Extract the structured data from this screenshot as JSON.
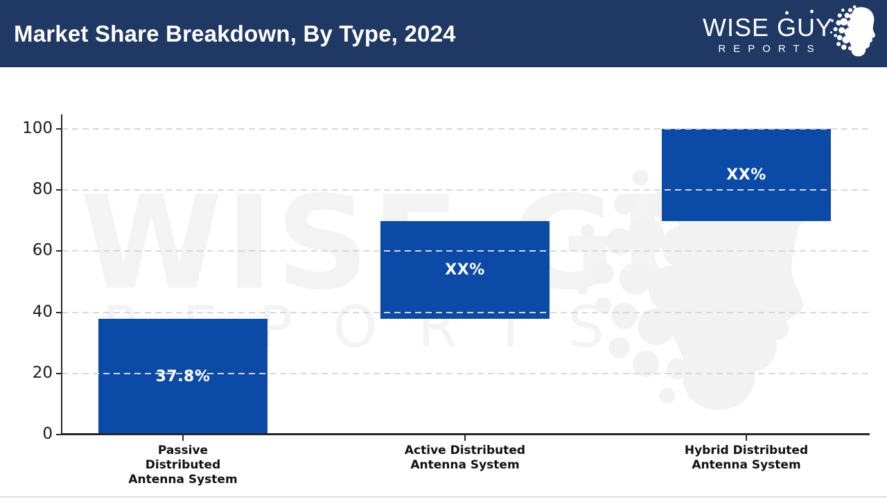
{
  "header": {
    "title": "Market Share Breakdown, By Type, 2024",
    "logo": {
      "wordmark": "WISE GUY",
      "subtitle": "REPORTS"
    }
  },
  "watermark": {
    "wordmark": "WISE GUY",
    "subtitle": "REPORTS"
  },
  "chart_data": {
    "type": "bar",
    "subtype": "floating-segment-waterfall",
    "title": "Market Share Breakdown, By Type, 2024",
    "categories": [
      "Passive Distributed Antenna System",
      "Active Distributed Antenna System",
      "Hybrid Distributed Antenna System"
    ],
    "bars": [
      {
        "category_lines": [
          "Passive",
          "Distributed",
          "Antenna System"
        ],
        "label": "37.8%",
        "start": 0,
        "end": 37.8
      },
      {
        "category_lines": [
          "Active Distributed",
          "Antenna System"
        ],
        "label": "XX%",
        "start": 37.8,
        "end": 69.9
      },
      {
        "category_lines": [
          "Hybrid Distributed",
          "Antenna System"
        ],
        "label": "XX%",
        "start": 69.9,
        "end": 100
      }
    ],
    "ylim": [
      0,
      100
    ],
    "yticks": [
      0,
      20,
      40,
      60,
      80,
      100
    ],
    "grid": "horizontal dashed",
    "legend": "none",
    "bar_color": "#0b4aa6",
    "bar_label_color": "#ffffff"
  },
  "colors": {
    "header_bg": "#1f3864",
    "grid": "#d8d8d8",
    "axis": "#262626",
    "watermark": "#f3f3f3"
  }
}
